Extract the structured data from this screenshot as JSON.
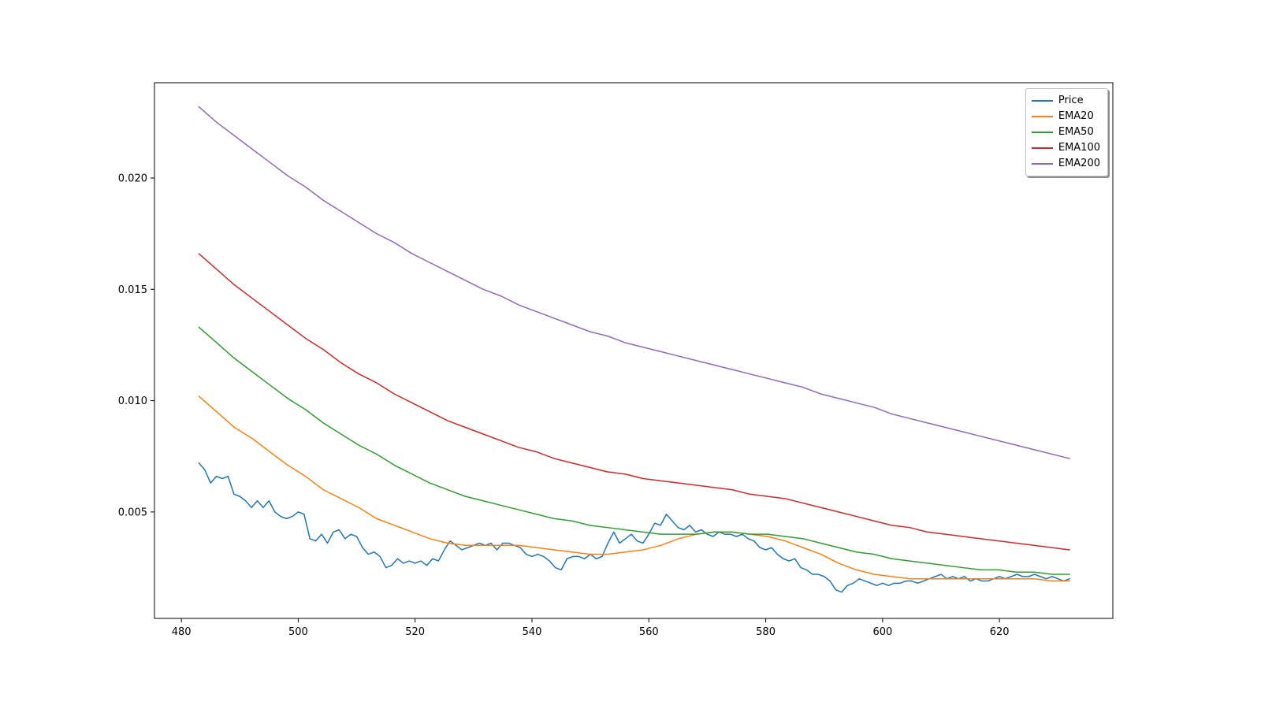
{
  "chart_data": {
    "type": "line",
    "title": "",
    "xlabel": "",
    "ylabel": "",
    "grid": false,
    "legend_position": "upper right",
    "xlim": [
      475.4,
      639.4
    ],
    "ylim": [
      0.00022,
      0.02428
    ],
    "x_ticks": [
      480,
      500,
      520,
      540,
      560,
      580,
      600,
      620
    ],
    "x_tick_labels": [
      "480",
      "500",
      "520",
      "540",
      "560",
      "580",
      "600",
      "620"
    ],
    "y_ticks": [
      0.005,
      0.01,
      0.015,
      0.02
    ],
    "y_tick_labels": [
      "0.005",
      "0.010",
      "0.015",
      "0.020"
    ],
    "series": [
      {
        "name": "Price",
        "color": "#1f77b4",
        "x_start": 483,
        "x_end": 632,
        "y": [
          0.0072,
          0.0069,
          0.0063,
          0.0066,
          0.0065,
          0.0066,
          0.0058,
          0.0057,
          0.0055,
          0.0052,
          0.0055,
          0.0052,
          0.0055,
          0.005,
          0.0048,
          0.0047,
          0.0048,
          0.005,
          0.0049,
          0.0038,
          0.0037,
          0.004,
          0.0036,
          0.0041,
          0.0042,
          0.0038,
          0.004,
          0.0039,
          0.0034,
          0.0031,
          0.0032,
          0.003,
          0.0025,
          0.0026,
          0.0029,
          0.0027,
          0.0028,
          0.0027,
          0.0028,
          0.0026,
          0.0029,
          0.0028,
          0.0033,
          0.0037,
          0.0035,
          0.0033,
          0.0034,
          0.0035,
          0.0036,
          0.0035,
          0.0036,
          0.0033,
          0.0036,
          0.0036,
          0.0035,
          0.0034,
          0.0031,
          0.003,
          0.0031,
          0.003,
          0.0028,
          0.0025,
          0.0024,
          0.0029,
          0.003,
          0.003,
          0.0029,
          0.0031,
          0.0029,
          0.003,
          0.0036,
          0.0041,
          0.0036,
          0.0038,
          0.004,
          0.0037,
          0.0036,
          0.004,
          0.0045,
          0.0044,
          0.0049,
          0.0046,
          0.0043,
          0.0042,
          0.0044,
          0.0041,
          0.0042,
          0.004,
          0.0039,
          0.0041,
          0.004,
          0.004,
          0.0039,
          0.004,
          0.0038,
          0.0037,
          0.0034,
          0.0033,
          0.0034,
          0.0031,
          0.0029,
          0.0028,
          0.0029,
          0.0025,
          0.0024,
          0.0022,
          0.0022,
          0.0021,
          0.0019,
          0.0015,
          0.0014,
          0.0017,
          0.0018,
          0.002,
          0.0019,
          0.0018,
          0.0017,
          0.0018,
          0.0017,
          0.0018,
          0.0018,
          0.0019,
          0.0019,
          0.0018,
          0.0019,
          0.002,
          0.0021,
          0.0022,
          0.002,
          0.0021,
          0.002,
          0.0021,
          0.0019,
          0.002,
          0.0019,
          0.0019,
          0.002,
          0.0021,
          0.002,
          0.0021,
          0.0022,
          0.0021,
          0.0021,
          0.0022,
          0.0021,
          0.002,
          0.0021,
          0.002,
          0.0019,
          0.002
        ]
      },
      {
        "name": "EMA20",
        "color": "#ff7f0e",
        "x_start": 483,
        "x_end": 632,
        "y": [
          0.0102,
          0.0095,
          0.0088,
          0.0083,
          0.0077,
          0.0071,
          0.0066,
          0.006,
          0.0056,
          0.0052,
          0.0047,
          0.0044,
          0.0041,
          0.0038,
          0.0036,
          0.0035,
          0.0035,
          0.0035,
          0.0035,
          0.0034,
          0.0033,
          0.0032,
          0.0031,
          0.0031,
          0.0032,
          0.0033,
          0.0035,
          0.0038,
          0.004,
          0.0041,
          0.0041,
          0.004,
          0.0039,
          0.0037,
          0.0034,
          0.0031,
          0.0027,
          0.0024,
          0.0022,
          0.0021,
          0.002,
          0.002,
          0.002,
          0.002,
          0.002,
          0.002,
          0.002,
          0.002,
          0.0019,
          0.0019
        ]
      },
      {
        "name": "EMA50",
        "color": "#2ca02c",
        "x_start": 483,
        "x_end": 632,
        "y": [
          0.0133,
          0.0126,
          0.0119,
          0.0113,
          0.0107,
          0.0101,
          0.0096,
          0.009,
          0.0085,
          0.008,
          0.0076,
          0.0071,
          0.0067,
          0.0063,
          0.006,
          0.0057,
          0.0055,
          0.0053,
          0.0051,
          0.0049,
          0.0047,
          0.0046,
          0.0044,
          0.0043,
          0.0042,
          0.0041,
          0.004,
          0.004,
          0.004,
          0.0041,
          0.0041,
          0.004,
          0.004,
          0.0039,
          0.0038,
          0.0036,
          0.0034,
          0.0032,
          0.0031,
          0.0029,
          0.0028,
          0.0027,
          0.0026,
          0.0025,
          0.0024,
          0.0024,
          0.0023,
          0.0023,
          0.0022,
          0.0022
        ]
      },
      {
        "name": "EMA100",
        "color": "#d62728",
        "x_start": 483,
        "x_end": 632,
        "y": [
          0.0166,
          0.0159,
          0.0152,
          0.0146,
          0.014,
          0.0134,
          0.0128,
          0.0123,
          0.0117,
          0.0112,
          0.0108,
          0.0103,
          0.0099,
          0.0095,
          0.0091,
          0.0088,
          0.0085,
          0.0082,
          0.0079,
          0.0077,
          0.0074,
          0.0072,
          0.007,
          0.0068,
          0.0067,
          0.0065,
          0.0064,
          0.0063,
          0.0062,
          0.0061,
          0.006,
          0.0058,
          0.0057,
          0.0056,
          0.0054,
          0.0052,
          0.005,
          0.0048,
          0.0046,
          0.0044,
          0.0043,
          0.0041,
          0.004,
          0.0039,
          0.0038,
          0.0037,
          0.0036,
          0.0035,
          0.0034,
          0.0033
        ]
      },
      {
        "name": "EMA200",
        "color": "#9467bd",
        "x_start": 483,
        "x_end": 632,
        "y": [
          0.0232,
          0.0225,
          0.0219,
          0.0213,
          0.0207,
          0.0201,
          0.0196,
          0.019,
          0.0185,
          0.018,
          0.0175,
          0.0171,
          0.0166,
          0.0162,
          0.0158,
          0.0154,
          0.015,
          0.0147,
          0.0143,
          0.014,
          0.0137,
          0.0134,
          0.0131,
          0.0129,
          0.0126,
          0.0124,
          0.0122,
          0.012,
          0.0118,
          0.0116,
          0.0114,
          0.0112,
          0.011,
          0.0108,
          0.0106,
          0.0103,
          0.0101,
          0.0099,
          0.0097,
          0.0094,
          0.0092,
          0.009,
          0.0088,
          0.0086,
          0.0084,
          0.0082,
          0.008,
          0.0078,
          0.0076,
          0.0074
        ]
      }
    ]
  },
  "legend": {
    "entries": [
      "Price",
      "EMA20",
      "EMA50",
      "EMA100",
      "EMA200"
    ]
  },
  "colors": {
    "axes": "#000000",
    "background": "#ffffff",
    "legend_border": "#bfbfbf"
  }
}
